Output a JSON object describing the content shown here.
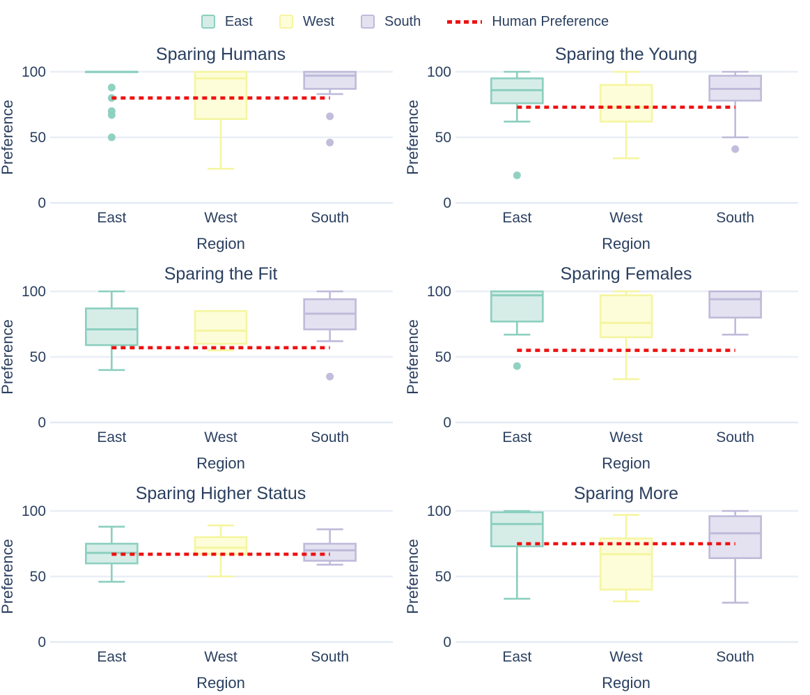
{
  "style": {
    "text_color": "#2a3f5f",
    "grid_color": "#e9eef6",
    "zero_line_color": "#e3eaf3",
    "background": "#ffffff",
    "human_preference_color": "#ee1111"
  },
  "legend": {
    "items": [
      {
        "label": "East",
        "type": "box",
        "stroke": "#8bcfbf",
        "fill": "#d6ede7"
      },
      {
        "label": "West",
        "type": "box",
        "stroke": "#f5f5a0",
        "fill": "#fdfdd9"
      },
      {
        "label": "South",
        "type": "box",
        "stroke": "#bebada",
        "fill": "#e4e2f0"
      },
      {
        "label": "Human Preference",
        "type": "dashed-line",
        "stroke": "#ee1111"
      }
    ]
  },
  "chart_data": [
    {
      "type": "box",
      "title": "Sparing Humans",
      "xlabel": "Region",
      "ylabel": "Preference",
      "categories": [
        "East",
        "West",
        "South"
      ],
      "yticks": [
        0,
        50,
        100
      ],
      "ylim": [
        0,
        108
      ],
      "grid": true,
      "human_preference": 80,
      "series": [
        {
          "name": "East",
          "min": 100,
          "q1": 100,
          "median": 100,
          "q3": 100,
          "max": 100,
          "outliers": [
            88,
            80,
            70,
            67,
            50
          ]
        },
        {
          "name": "West",
          "min": 26,
          "q1": 64,
          "median": 95,
          "q3": 100,
          "max": 100,
          "outliers": []
        },
        {
          "name": "South",
          "min": 83,
          "q1": 87,
          "median": 97,
          "q3": 100,
          "max": 100,
          "outliers": [
            66,
            46
          ]
        }
      ]
    },
    {
      "type": "box",
      "title": "Sparing the Young",
      "xlabel": "Region",
      "ylabel": "Preference",
      "categories": [
        "East",
        "West",
        "South"
      ],
      "yticks": [
        0,
        50,
        100
      ],
      "ylim": [
        0,
        108
      ],
      "grid": true,
      "human_preference": 73,
      "series": [
        {
          "name": "East",
          "min": 62,
          "q1": 76,
          "median": 86,
          "q3": 95,
          "max": 100,
          "outliers": [
            21
          ]
        },
        {
          "name": "West",
          "min": 34,
          "q1": 62,
          "median": 73,
          "q3": 90,
          "max": 100,
          "outliers": []
        },
        {
          "name": "South",
          "min": 50,
          "q1": 78,
          "median": 87,
          "q3": 97,
          "max": 100,
          "outliers": [
            41
          ]
        }
      ]
    },
    {
      "type": "box",
      "title": "Sparing the Fit",
      "xlabel": "Region",
      "ylabel": "Preference",
      "categories": [
        "East",
        "West",
        "South"
      ],
      "yticks": [
        0,
        50,
        100
      ],
      "ylim": [
        0,
        108
      ],
      "grid": true,
      "human_preference": 57,
      "series": [
        {
          "name": "East",
          "min": 40,
          "q1": 59,
          "median": 71,
          "q3": 87,
          "max": 100,
          "outliers": []
        },
        {
          "name": "West",
          "min": 55,
          "q1": 60,
          "median": 70,
          "q3": 85,
          "max": 85,
          "outliers": []
        },
        {
          "name": "South",
          "min": 62,
          "q1": 71,
          "median": 83,
          "q3": 94,
          "max": 100,
          "outliers": [
            35
          ]
        }
      ]
    },
    {
      "type": "box",
      "title": "Sparing Females",
      "xlabel": "Region",
      "ylabel": "Preference",
      "categories": [
        "East",
        "West",
        "South"
      ],
      "yticks": [
        0,
        50,
        100
      ],
      "ylim": [
        0,
        108
      ],
      "grid": true,
      "human_preference": 55,
      "series": [
        {
          "name": "East",
          "min": 67,
          "q1": 77,
          "median": 97,
          "q3": 100,
          "max": 100,
          "outliers": [
            43
          ]
        },
        {
          "name": "West",
          "min": 33,
          "q1": 65,
          "median": 76,
          "q3": 97,
          "max": 100,
          "outliers": []
        },
        {
          "name": "South",
          "min": 67,
          "q1": 80,
          "median": 94,
          "q3": 100,
          "max": 100,
          "outliers": []
        }
      ]
    },
    {
      "type": "box",
      "title": "Sparing Higher Status",
      "xlabel": "Region",
      "ylabel": "Preference",
      "categories": [
        "East",
        "West",
        "South"
      ],
      "yticks": [
        0,
        50,
        100
      ],
      "ylim": [
        0,
        108
      ],
      "grid": true,
      "human_preference": 67,
      "series": [
        {
          "name": "East",
          "min": 46,
          "q1": 60,
          "median": 68,
          "q3": 75,
          "max": 88,
          "outliers": []
        },
        {
          "name": "West",
          "min": 50,
          "q1": 67,
          "median": 72,
          "q3": 80,
          "max": 89,
          "outliers": []
        },
        {
          "name": "South",
          "min": 59,
          "q1": 62,
          "median": 70,
          "q3": 75,
          "max": 86,
          "outliers": []
        }
      ]
    },
    {
      "type": "box",
      "title": "Sparing More",
      "xlabel": "Region",
      "ylabel": "Preference",
      "categories": [
        "East",
        "West",
        "South"
      ],
      "yticks": [
        0,
        50,
        100
      ],
      "ylim": [
        0,
        108
      ],
      "grid": true,
      "human_preference": 75,
      "series": [
        {
          "name": "East",
          "min": 33,
          "q1": 73,
          "median": 90,
          "q3": 99,
          "max": 100,
          "outliers": []
        },
        {
          "name": "West",
          "min": 31,
          "q1": 40,
          "median": 67,
          "q3": 79,
          "max": 97,
          "outliers": []
        },
        {
          "name": "South",
          "min": 30,
          "q1": 64,
          "median": 83,
          "q3": 96,
          "max": 100,
          "outliers": []
        }
      ]
    }
  ],
  "series_style": {
    "East": {
      "stroke": "#8bcfbf",
      "fill": "#d6ede7"
    },
    "West": {
      "stroke": "#f5f5a0",
      "fill": "#fdfdd9"
    },
    "South": {
      "stroke": "#bebada",
      "fill": "#e4e2f0"
    }
  }
}
